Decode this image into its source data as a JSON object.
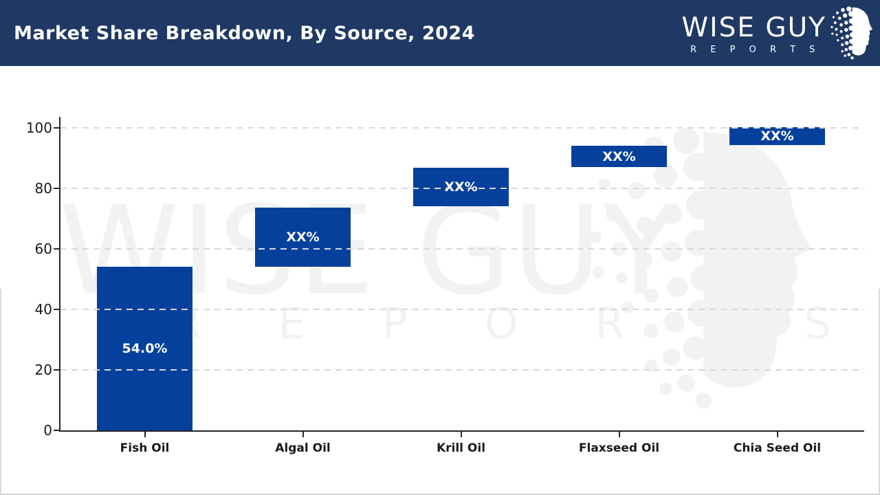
{
  "header": {
    "title": "Market Share Breakdown, By Source, 2024",
    "logo": {
      "line1": "WISE GUY",
      "line2": "R E P O R T S"
    }
  },
  "watermark": {
    "line1": "WISE GUY",
    "line2": "R E P O R T S"
  },
  "colors": {
    "header_bg": "#1f3864",
    "bar": "#05409c",
    "grid": "#d9d9d9",
    "axis": "#262626",
    "watermark": "#f2f2f2",
    "bar_label_text": "#ffffff",
    "title_text": "#ffffff"
  },
  "chart_data": {
    "type": "bar",
    "subtype": "waterfall",
    "title": "Market Share Breakdown, By Source, 2024",
    "xlabel": "",
    "ylabel": "",
    "categories": [
      "Fish Oil",
      "Algal Oil",
      "Krill Oil",
      "Flaxseed Oil",
      "Chia Seed Oil"
    ],
    "segments": [
      {
        "category": "Fish Oil",
        "start": 0,
        "end": 54.0,
        "label": "54.0%"
      },
      {
        "category": "Algal Oil",
        "start": 54.0,
        "end": 73.6,
        "label": "XX%"
      },
      {
        "category": "Krill Oil",
        "start": 74.0,
        "end": 86.8,
        "label": "XX%"
      },
      {
        "category": "Flaxseed Oil",
        "start": 87.0,
        "end": 94.1,
        "label": "XX%"
      },
      {
        "category": "Chia Seed Oil",
        "start": 94.3,
        "end": 100.3,
        "label": "XX%"
      }
    ],
    "yticks": [
      0,
      20,
      40,
      60,
      80,
      100
    ],
    "ylim": [
      0,
      105
    ],
    "grid": "dashed horizontal",
    "legend": "none"
  }
}
